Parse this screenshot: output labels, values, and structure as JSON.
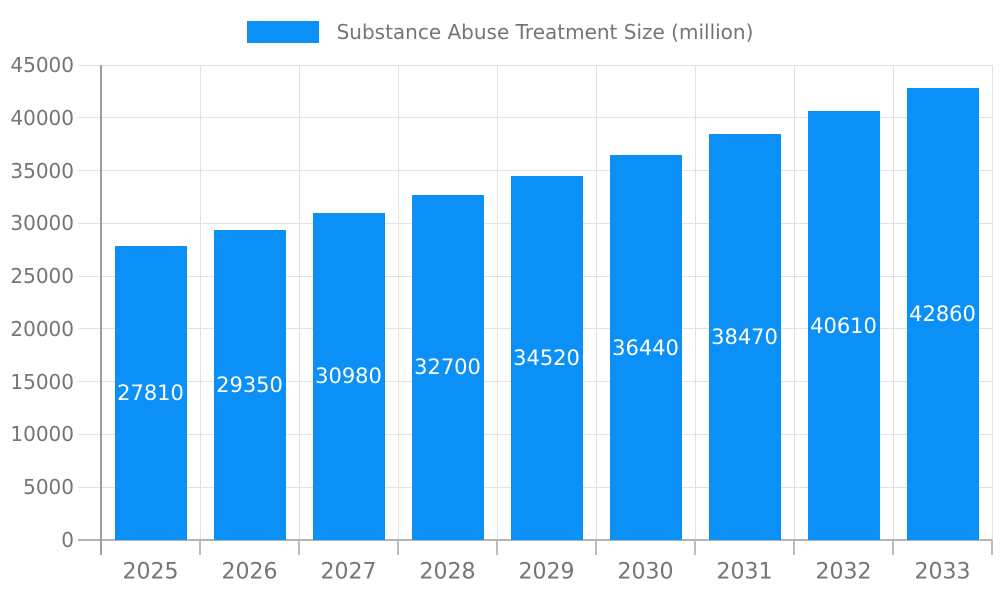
{
  "chart_data": {
    "type": "bar",
    "title": "Substance Abuse Treatment Size (million)",
    "categories": [
      "2025",
      "2026",
      "2027",
      "2028",
      "2029",
      "2030",
      "2031",
      "2032",
      "2033"
    ],
    "values": [
      27810,
      29350,
      30980,
      32700,
      34520,
      36440,
      38470,
      40610,
      42860
    ],
    "xlabel": "",
    "ylabel": "",
    "ylim": [
      0,
      45000
    ],
    "ytick_step": 5000,
    "yticks": [
      0,
      5000,
      10000,
      15000,
      20000,
      25000,
      30000,
      35000,
      40000,
      45000
    ],
    "grid": true,
    "legend_position": "top-center",
    "legend": [
      "Substance Abuse Treatment Size (million)"
    ],
    "colors": {
      "bar": "#0b90f7",
      "value_label": "#ffffff",
      "axis_text": "#757575",
      "y_axis_line": "#9e9e9e",
      "x_axis_line": "#b3b3b3",
      "tick": "#bdbdbd",
      "gridline": "#e2e2e2",
      "background": "#ffffff"
    }
  }
}
